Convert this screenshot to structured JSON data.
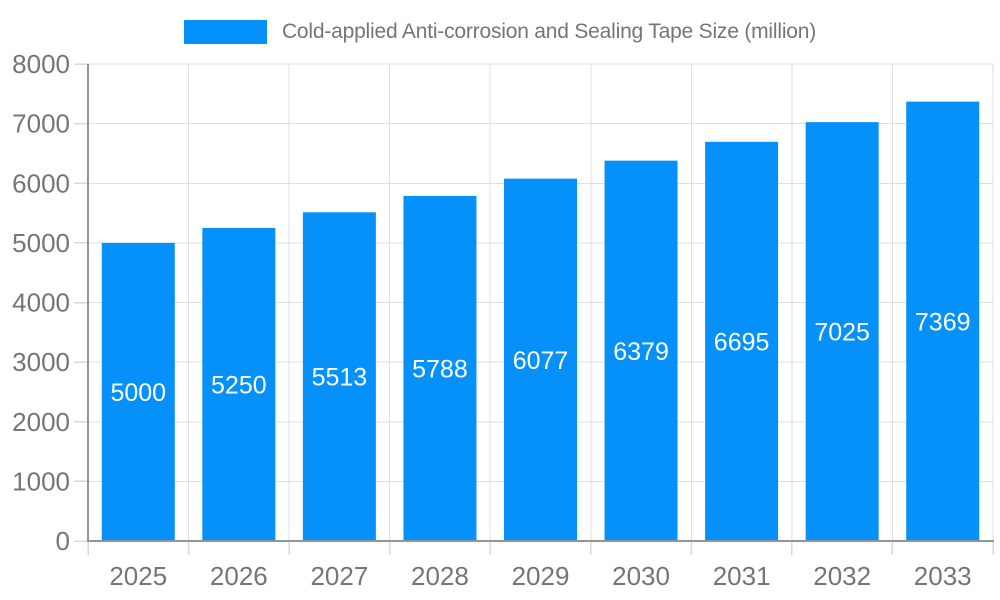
{
  "chart_data": {
    "type": "bar",
    "title": "Cold-applied Anti-corrosion and Sealing Tape Size (million)",
    "categories": [
      "2025",
      "2026",
      "2027",
      "2028",
      "2029",
      "2030",
      "2031",
      "2032",
      "2033"
    ],
    "values": [
      5000,
      5250,
      5513,
      5788,
      6077,
      6379,
      6695,
      7025,
      7369
    ],
    "series": [
      {
        "name": "Cold-applied Anti-corrosion and Sealing Tape Size (million)",
        "values": [
          5000,
          5250,
          5513,
          5788,
          6077,
          6379,
          6695,
          7025,
          7369
        ]
      }
    ],
    "xlabel": "",
    "ylabel": "",
    "ylim": [
      0,
      8000
    ],
    "yticks": [
      0,
      1000,
      2000,
      3000,
      4000,
      5000,
      6000,
      7000,
      8000
    ],
    "grid": true,
    "legend_position": "top",
    "bar_value_labels_visible": true
  },
  "colors": {
    "bar": "#0591F9",
    "bar_label": "#FFFFFF",
    "tick_label": "#757575",
    "title": "#757575",
    "axis_line": "#949494",
    "gridline": "#DFDFDF",
    "tick_mark": "#D9D9D9",
    "background": "#FFFFFF"
  }
}
